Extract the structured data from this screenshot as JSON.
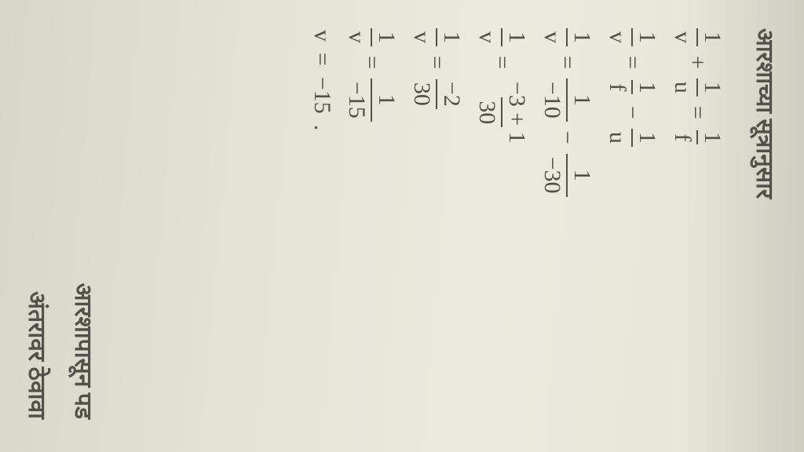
{
  "doc": {
    "background_gradient": [
      "#d8d6c8",
      "#e4e2d4",
      "#eceade",
      "#e6e4d6"
    ],
    "text_color": "#51504a",
    "rotation_deg": 90,
    "heading": "आरशाच्या सूत्रानुसार",
    "heading_fontsize": 30,
    "equation_fontsize": 30,
    "equations": [
      {
        "terms": [
          {
            "type": "frac",
            "num": "1",
            "den": "v"
          },
          {
            "type": "op",
            "v": "+"
          },
          {
            "type": "frac",
            "num": "1",
            "den": "u"
          },
          {
            "type": "op",
            "v": "="
          },
          {
            "type": "frac",
            "num": "1",
            "den": "f"
          }
        ]
      },
      {
        "terms": [
          {
            "type": "frac",
            "num": "1",
            "den": "v"
          },
          {
            "type": "op",
            "v": "="
          },
          {
            "type": "frac",
            "num": "1",
            "den": "f"
          },
          {
            "type": "op",
            "v": "−"
          },
          {
            "type": "frac",
            "num": "1",
            "den": "u"
          }
        ]
      },
      {
        "terms": [
          {
            "type": "frac",
            "num": "1",
            "den": "v"
          },
          {
            "type": "op",
            "v": "="
          },
          {
            "type": "frac",
            "num": "1",
            "den": "−10"
          },
          {
            "type": "op",
            "v": "−"
          },
          {
            "type": "frac",
            "num": "1",
            "den": "−30"
          }
        ]
      },
      {
        "terms": [
          {
            "type": "frac",
            "num": "1",
            "den": "v"
          },
          {
            "type": "op",
            "v": "="
          },
          {
            "type": "frac",
            "num": "−3 + 1",
            "den": "30"
          }
        ]
      },
      {
        "terms": [
          {
            "type": "frac",
            "num": "1",
            "den": "v"
          },
          {
            "type": "op",
            "v": "="
          },
          {
            "type": "frac",
            "num": "−2",
            "den": "30"
          }
        ]
      },
      {
        "terms": [
          {
            "type": "frac",
            "num": "1",
            "den": "v"
          },
          {
            "type": "op",
            "v": "="
          },
          {
            "type": "frac",
            "num": "1",
            "den": "−15"
          }
        ]
      },
      {
        "terms": [
          {
            "type": "plain",
            "v": "v"
          },
          {
            "type": "op",
            "v": "="
          },
          {
            "type": "plain",
            "v": "−15"
          },
          {
            "type": "plain",
            "v": "."
          }
        ]
      }
    ],
    "trailing_fragments": [
      "आरशापासून पड",
      "अंतरावर ठेवावा"
    ],
    "trailing_fontsize": 30
  }
}
